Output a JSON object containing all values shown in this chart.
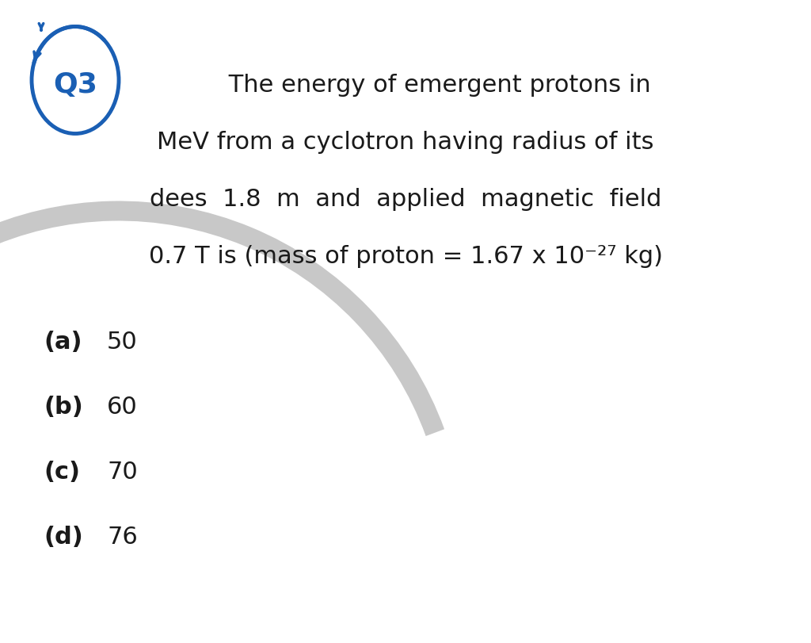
{
  "bg_color": "#ffffff",
  "q3_label": "Q3",
  "q3_color": "#1a5fb4",
  "q3_font_size": 26,
  "q3_box_color": "#1a5fb4",
  "question_lines": [
    " The energy of emergent protons in",
    "MeV from a cyclotron having radius of its",
    "dees  1.8  m  and  applied  magnetic  field",
    "0.7 T is (mass of proton = 1.67 x 10⁻²⁷ kg)"
  ],
  "question_font_size": 22,
  "options": [
    {
      "label": "(a)",
      "value": "50"
    },
    {
      "label": "(b)",
      "value": "60"
    },
    {
      "label": "(c)",
      "value": "70"
    },
    {
      "label": "(d)",
      "value": "76"
    }
  ],
  "option_font_size": 22,
  "arc_color": "#c8c8c8",
  "arc_linewidth": 18,
  "arrow_color": "#1a5fb4",
  "arrow_linewidth": 4
}
